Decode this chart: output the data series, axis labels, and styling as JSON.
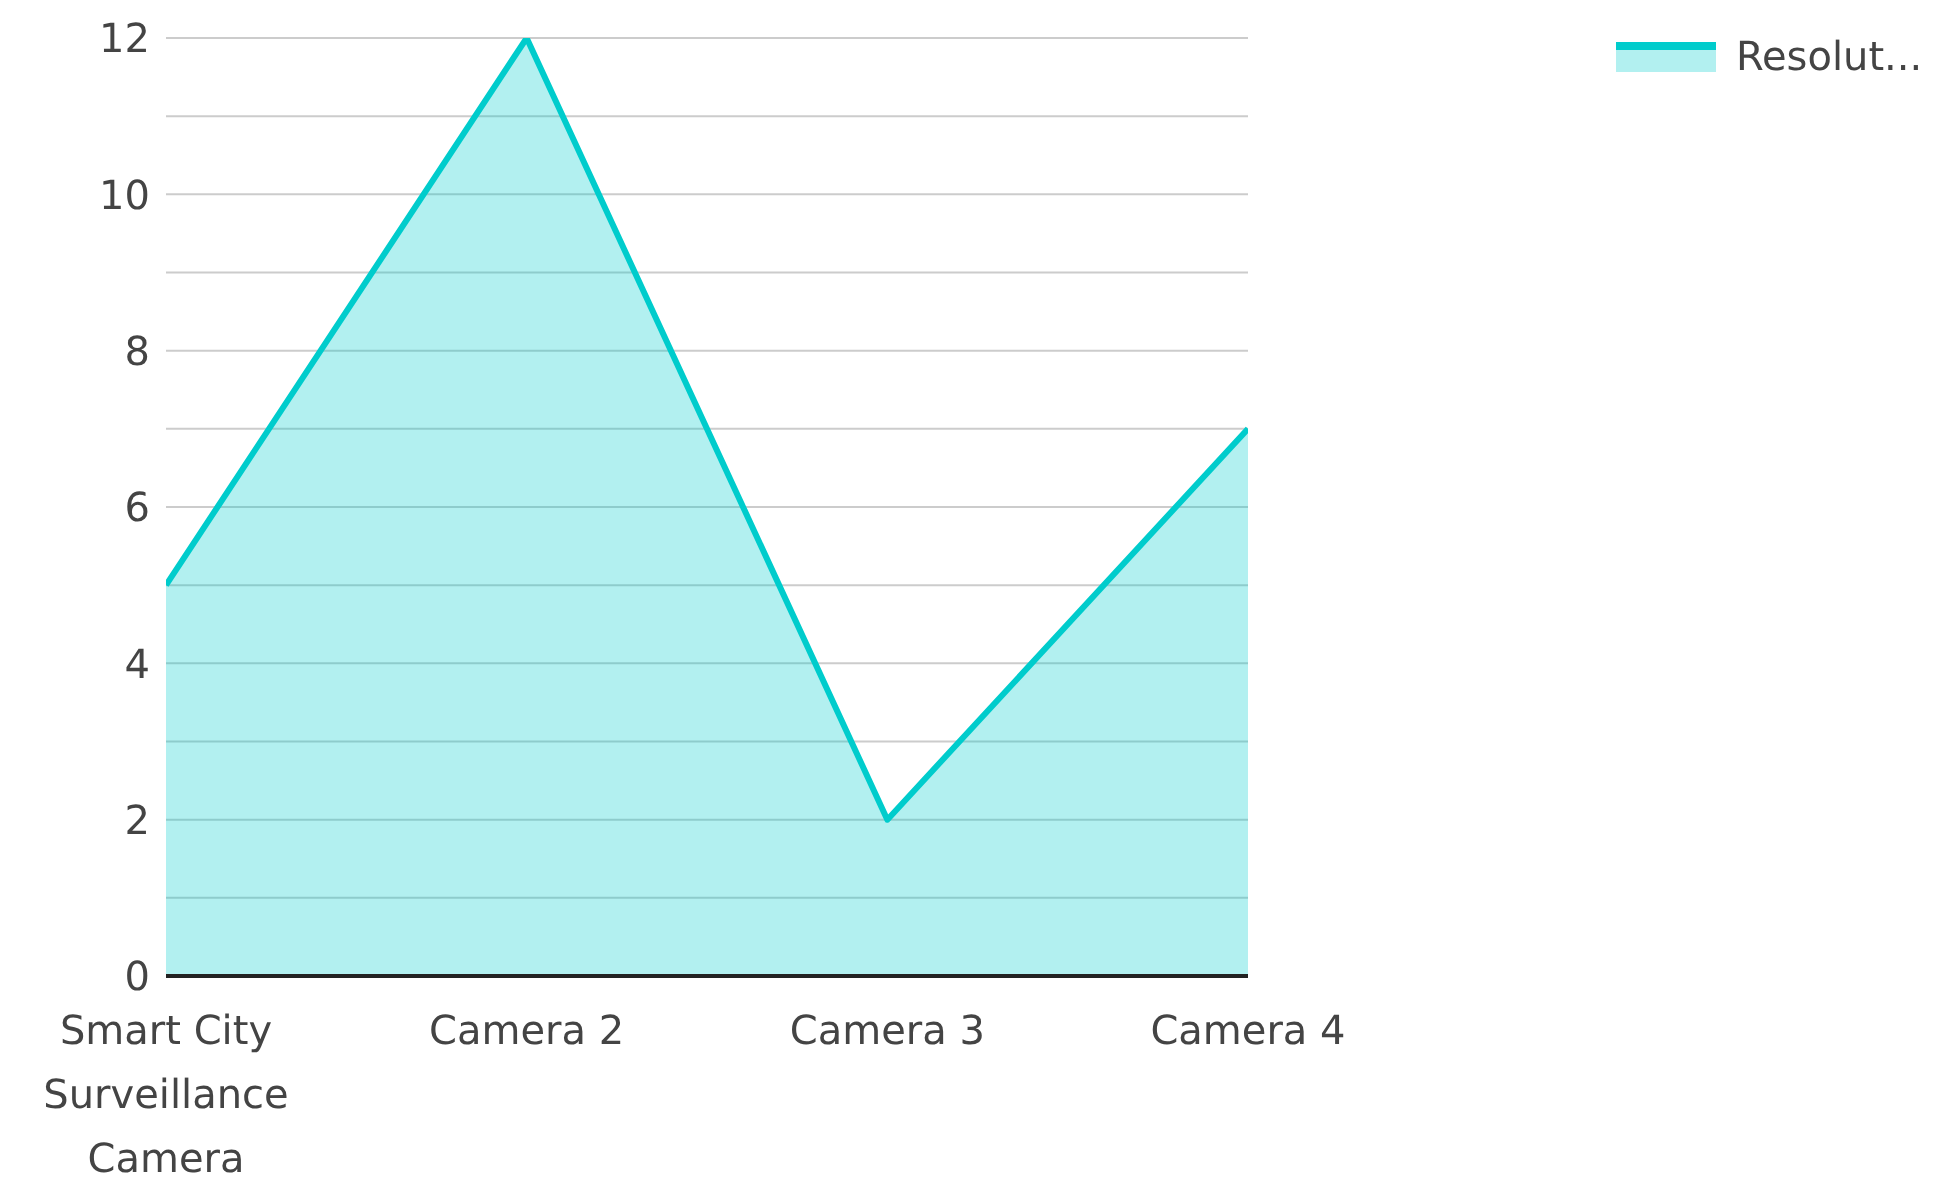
{
  "chart_data": {
    "type": "area",
    "categories": [
      "Smart City Surveillance Camera",
      "Camera 2",
      "Camera 3",
      "Camera 4"
    ],
    "series": [
      {
        "name": "Resolut...",
        "color": "#00cccc",
        "values": [
          5,
          12,
          2,
          7
        ]
      }
    ],
    "ylim": [
      0,
      12
    ],
    "yticks": [
      0,
      {
        "value": 1,
        "label": null
      },
      2,
      {
        "value": 3,
        "label": null
      },
      4,
      {
        "value": 5,
        "label": null
      },
      6,
      {
        "value": 7,
        "label": null
      },
      8,
      {
        "value": 9,
        "label": null
      },
      10,
      {
        "value": 11,
        "label": null
      },
      12
    ],
    "grid": "y",
    "legend": "top right"
  }
}
